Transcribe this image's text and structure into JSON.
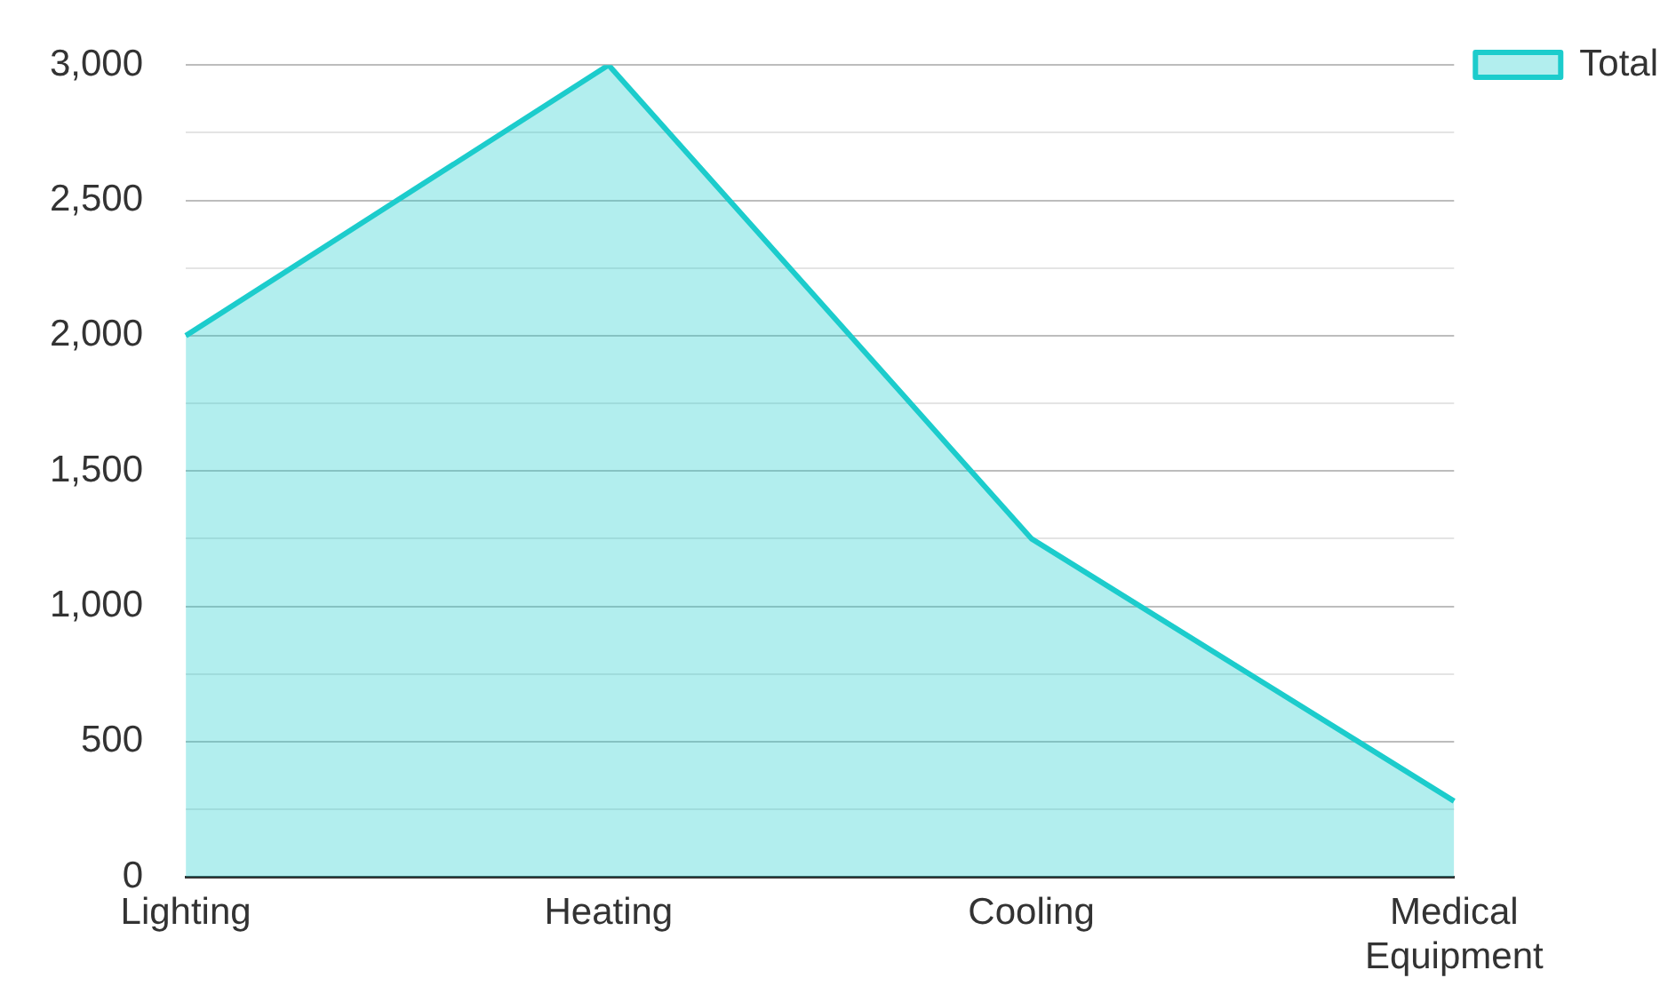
{
  "chart_data": {
    "type": "area",
    "categories": [
      "Lighting",
      "Heating",
      "Cooling",
      "Medical Equipment"
    ],
    "series": [
      {
        "name": "Total",
        "color": "#1ccccc",
        "values": [
          2000,
          3000,
          1250,
          280
        ]
      }
    ],
    "ylim": [
      0,
      3000
    ],
    "yticks": [
      0,
      {
        "value": 250,
        "label": null
      },
      500,
      {
        "value": 750,
        "label": null
      },
      {
        "value": 1000,
        "label": "1,000"
      },
      {
        "value": 1250,
        "label": null
      },
      {
        "value": 1500,
        "label": "1,500"
      },
      {
        "value": 1750,
        "label": null
      },
      {
        "value": 2000,
        "label": "2,000"
      },
      {
        "value": 2250,
        "label": null
      },
      {
        "value": 2500,
        "label": "2,500"
      },
      {
        "value": 2750,
        "label": null
      },
      {
        "value": 3000,
        "label": "3,000"
      }
    ],
    "grid": "y",
    "legend": "top right",
    "marker": "none",
    "line_style": "solid"
  }
}
